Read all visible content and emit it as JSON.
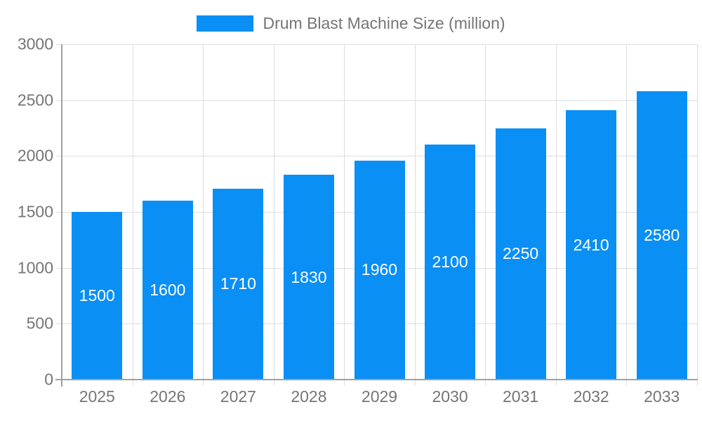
{
  "chart_data": {
    "type": "bar",
    "legend_label": "Drum Blast Machine Size (million)",
    "categories": [
      "2025",
      "2026",
      "2027",
      "2028",
      "2029",
      "2030",
      "2031",
      "2032",
      "2033"
    ],
    "values": [
      1500,
      1600,
      1710,
      1830,
      1960,
      2100,
      2250,
      2410,
      2580
    ],
    "ylim": [
      0,
      3000
    ],
    "yticks": [
      0,
      500,
      1000,
      1500,
      2000,
      2500,
      3000
    ],
    "grid": true,
    "legend_position": "top",
    "bar_value_labels": "inside-center"
  },
  "colors": {
    "bar": "#0a8ff5",
    "bar_label_text": "#ffffff",
    "axis_text": "#757575",
    "gridline": "#dedede",
    "axis_line": "#a0a0a0",
    "background": "#ffffff"
  }
}
